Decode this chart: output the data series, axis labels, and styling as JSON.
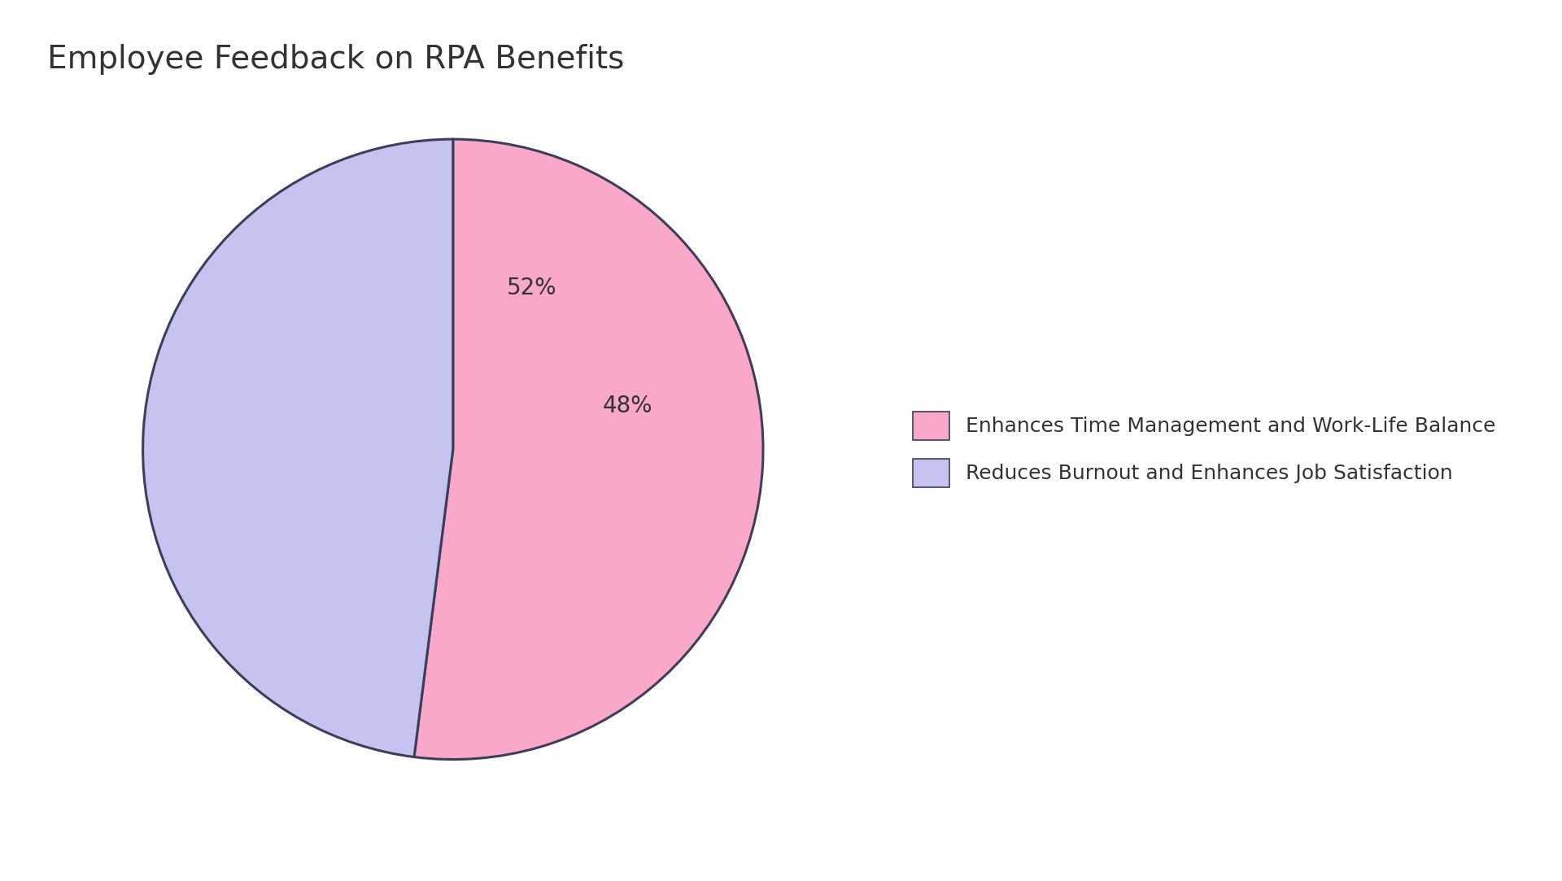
{
  "title": "Employee Feedback on RPA Benefits",
  "slices": [
    52,
    48
  ],
  "colors": [
    "#F9A8C9",
    "#C5C4F0"
  ],
  "edge_color": "#3d3d5c",
  "labels": [
    "Enhances Time Management and Work-Life Balance",
    "Reduces Burnout and Enhances Job Satisfaction"
  ],
  "pct_labels": [
    "52%",
    "48%"
  ],
  "title_fontsize": 28,
  "pct_fontsize": 20,
  "legend_fontsize": 18,
  "background_color": "#ffffff",
  "text_color": "#333333",
  "startangle": 90
}
